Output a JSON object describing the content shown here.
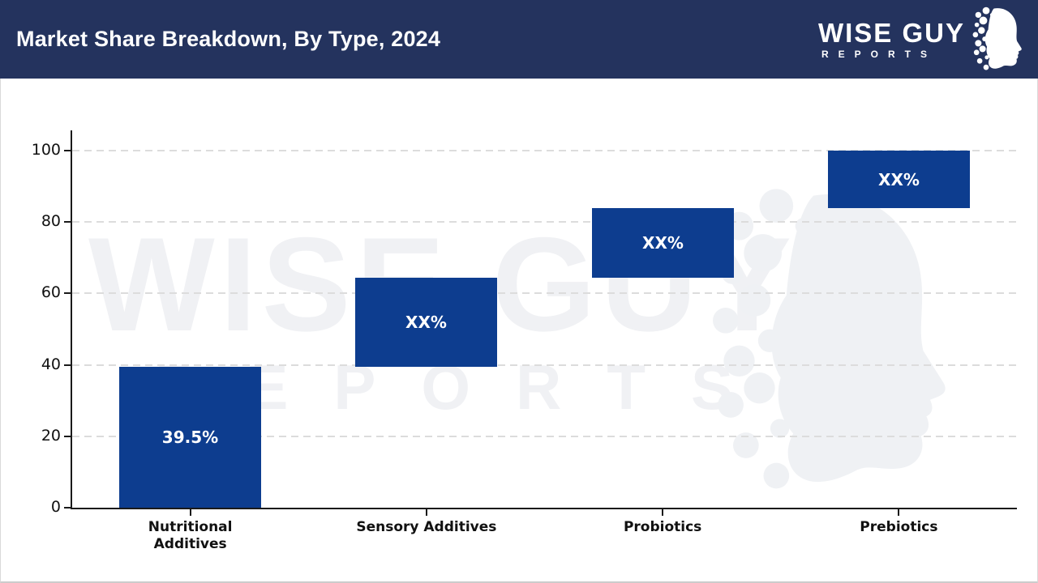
{
  "header": {
    "title": "Market Share Breakdown, By Type, 2024",
    "bg_color": "#24335e",
    "logo": {
      "line1": "WISE GUY",
      "line2": "REPORTS"
    }
  },
  "watermark": {
    "line1": "WISE GUY",
    "line2": "REPORTS"
  },
  "chart_data": {
    "type": "bar",
    "variant": "floating_waterfall",
    "title": "Market Share Breakdown, By Type, 2024",
    "categories": [
      "Nutritional\nAdditives",
      "Sensory Additives",
      "Probiotics",
      "Prebiotics"
    ],
    "segments": [
      {
        "category": "Nutritional Additives",
        "start": 0,
        "end": 39.5,
        "label": "39.5%"
      },
      {
        "category": "Sensory Additives",
        "start": 39.5,
        "end": 64.5,
        "label": "XX%"
      },
      {
        "category": "Probiotics",
        "start": 64.5,
        "end": 84,
        "label": "XX%"
      },
      {
        "category": "Prebiotics",
        "start": 84,
        "end": 100,
        "label": "XX%"
      }
    ],
    "ylim": [
      0,
      100
    ],
    "yticks": [
      0,
      20,
      40,
      60,
      80,
      100
    ],
    "grid": "horizontal-dashed",
    "legend": "none",
    "bar_color": "#0d3d8f",
    "bar_label_color": "#ffffff",
    "axis_color": "#1a1a1a"
  }
}
